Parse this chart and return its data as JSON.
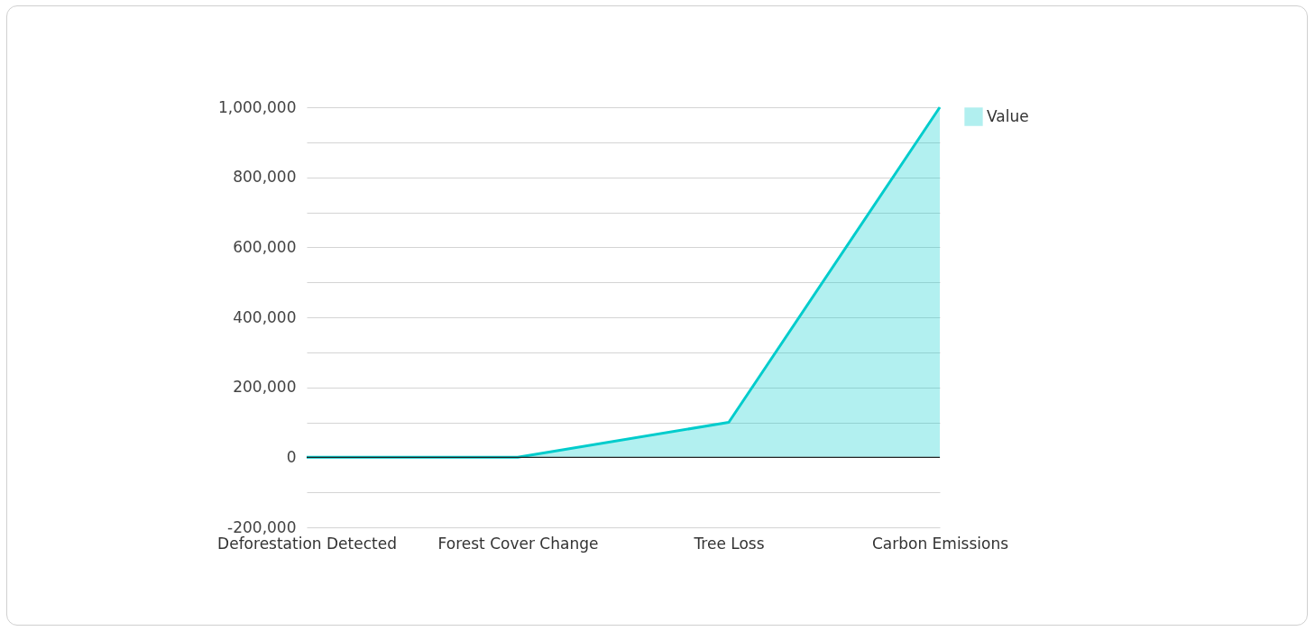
{
  "chart_data": {
    "type": "area",
    "categories": [
      "Deforestation Detected",
      "Forest Cover Change",
      "Tree Loss",
      "Carbon Emissions"
    ],
    "series": [
      {
        "name": "Value",
        "color": "#00cccc",
        "values": [
          0,
          0,
          100000,
          1000000
        ]
      }
    ],
    "ylim": [
      -200000,
      1000000
    ],
    "yticks": [
      {
        "value": -200000,
        "label": "-200,000"
      },
      {
        "value": -100000,
        "label": null
      },
      0,
      {
        "value": 100000,
        "label": null
      },
      {
        "value": 200000,
        "label": "200,000"
      },
      {
        "value": 300000,
        "label": null
      },
      {
        "value": 400000,
        "label": "400,000"
      },
      {
        "value": 500000,
        "label": null
      },
      {
        "value": 600000,
        "label": "600,000"
      },
      {
        "value": 700000,
        "label": null
      },
      {
        "value": 800000,
        "label": "800,000"
      },
      {
        "value": 900000,
        "label": null
      },
      {
        "value": 1000000,
        "label": "1,000,000"
      }
    ],
    "ref_lines": [
      {
        "axis": "y",
        "value": 0,
        "label": null,
        "color": "#222222"
      }
    ],
    "grid": "y",
    "legend": "top right"
  }
}
